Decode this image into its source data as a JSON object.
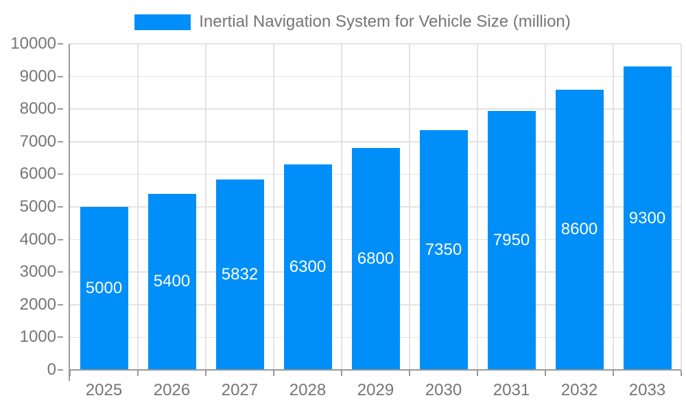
{
  "colors": {
    "bar": "#008FF8",
    "grid": "#e3e3e3",
    "axis": "#999999",
    "text": "#757575",
    "bar_label": "#ffffff",
    "background": "#ffffff"
  },
  "legend": {
    "label": "Inertial Navigation System for Vehicle Size (million)"
  },
  "chart_data": {
    "type": "bar",
    "title": "Inertial Navigation System for Vehicle Size (million)",
    "categories": [
      "2025",
      "2026",
      "2027",
      "2028",
      "2029",
      "2030",
      "2031",
      "2032",
      "2033"
    ],
    "values": [
      5000,
      5400,
      5832,
      6300,
      6800,
      7350,
      7950,
      8600,
      9300
    ],
    "xlabel": "",
    "ylabel": "",
    "ylim": [
      0,
      10000
    ],
    "y_ticks": [
      0,
      1000,
      2000,
      3000,
      4000,
      5000,
      6000,
      7000,
      8000,
      9000,
      10000
    ],
    "grid": true,
    "legend_position": "top",
    "value_label_position": "inside-center"
  }
}
